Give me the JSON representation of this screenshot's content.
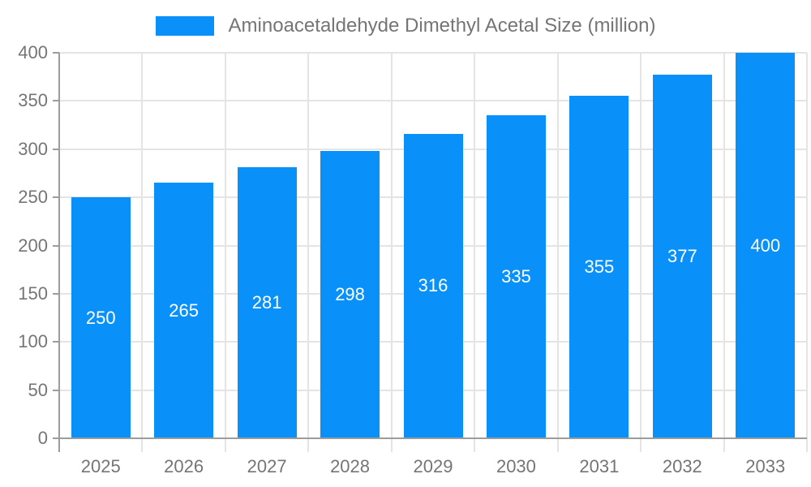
{
  "chart_data": {
    "type": "bar",
    "title": "Aminoacetaldehyde Dimethyl Acetal Size (million)",
    "categories": [
      "2025",
      "2026",
      "2027",
      "2028",
      "2029",
      "2030",
      "2031",
      "2032",
      "2033"
    ],
    "values": [
      250,
      265,
      281,
      298,
      316,
      335,
      355,
      377,
      400
    ],
    "xlabel": "",
    "ylabel": "",
    "ylim": [
      0,
      400
    ],
    "ytick_step": 50,
    "yticks": [
      0,
      50,
      100,
      150,
      200,
      250,
      300,
      350,
      400
    ],
    "grid": true,
    "legend_position": "top",
    "value_labels": "inside-center",
    "colors": {
      "bar": "#0991f9",
      "bar_value_text": "#ffffff",
      "axis": "#9c9c9c",
      "gridline": "#e4e4e4",
      "tick_text": "#757575",
      "legend_text": "#757575",
      "background": "#ffffff"
    }
  }
}
